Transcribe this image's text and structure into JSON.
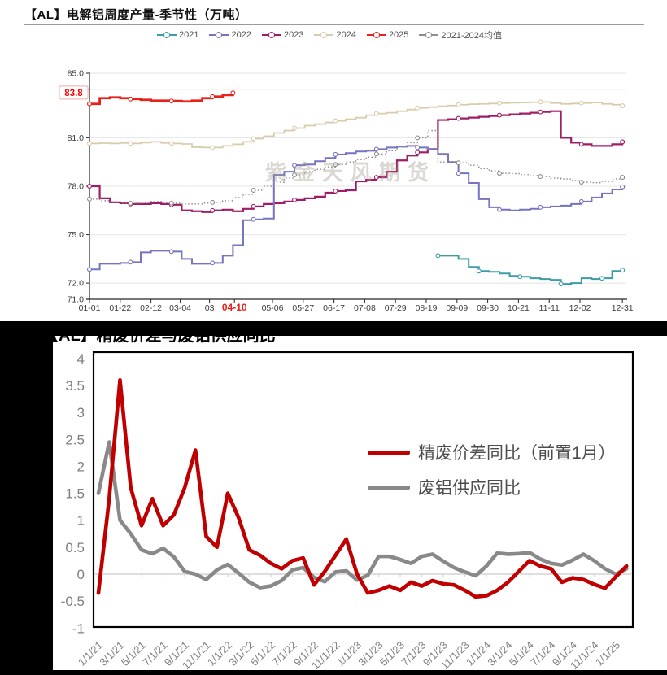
{
  "chart_data": [
    {
      "type": "line",
      "title": "【AL】电解铝周度产量-季节性（万吨）",
      "watermark": "紫金天风期货",
      "ylabel": "万吨",
      "ylim": [
        71,
        85
      ],
      "grid_values": [
        72,
        75,
        78,
        81,
        84,
        85
      ],
      "y_labels": [
        {
          "v": 85,
          "t": "85.0"
        },
        {
          "v": 81,
          "t": "81.0"
        },
        {
          "v": 78,
          "t": "78.0"
        },
        {
          "v": 75,
          "t": "75.0"
        },
        {
          "v": 72,
          "t": "72.0"
        },
        {
          "v": 71,
          "t": "71.0"
        }
      ],
      "highlight": {
        "value": 83.8,
        "label": "83.8",
        "color": "#ff0000"
      },
      "x_ticks": [
        {
          "d": 0,
          "t": "01-01"
        },
        {
          "d": 21,
          "t": "01-22"
        },
        {
          "d": 42,
          "t": "02-12"
        },
        {
          "d": 62,
          "t": "03-04"
        },
        {
          "d": 82,
          "t": "03"
        },
        {
          "d": 99,
          "t": "04-10",
          "red": true
        },
        {
          "d": 125,
          "t": "05-06"
        },
        {
          "d": 146,
          "t": "05-27"
        },
        {
          "d": 167,
          "t": "06-17"
        },
        {
          "d": 188,
          "t": "07-08"
        },
        {
          "d": 209,
          "t": "07-29"
        },
        {
          "d": 230,
          "t": "08-19"
        },
        {
          "d": 251,
          "t": "09-09"
        },
        {
          "d": 272,
          "t": "09-30"
        },
        {
          "d": 293,
          "t": "10-21"
        },
        {
          "d": 314,
          "t": "11-11"
        },
        {
          "d": 335,
          "t": "12-02"
        },
        {
          "d": 364,
          "t": "12-31"
        }
      ],
      "legend_position": "top",
      "grid": true,
      "series": [
        {
          "name": "2021",
          "color": "#3d9da6",
          "width": 2.0,
          "start_week": 34,
          "values": [
            73.7,
            73.7,
            73.5,
            73.0,
            72.75,
            72.7,
            72.6,
            72.45,
            72.4,
            72.3,
            72.25,
            72.2,
            71.95,
            72.0,
            72.3,
            72.25,
            72.3,
            72.75,
            72.8
          ]
        },
        {
          "name": "2022",
          "color": "#7673c0",
          "width": 2.0,
          "start_week": 0,
          "values": [
            72.85,
            73.2,
            73.2,
            73.25,
            73.3,
            73.9,
            74.0,
            74.0,
            73.95,
            73.5,
            73.2,
            73.2,
            73.25,
            73.7,
            74.35,
            75.9,
            75.95,
            76.0,
            78.7,
            78.9,
            79.3,
            79.35,
            79.55,
            79.75,
            79.97,
            80.05,
            80.15,
            80.2,
            80.3,
            80.4,
            80.45,
            80.5,
            80.4,
            80.3,
            80.0,
            79.5,
            78.8,
            78.2,
            77.2,
            76.7,
            76.55,
            76.5,
            76.55,
            76.6,
            76.7,
            76.75,
            76.8,
            76.9,
            77.05,
            77.3,
            77.55,
            77.8,
            77.96
          ]
        },
        {
          "name": "2023",
          "color": "#a01c66",
          "width": 2.2,
          "start_week": 0,
          "values": [
            78.0,
            77.25,
            77.0,
            76.95,
            76.9,
            76.9,
            76.95,
            76.9,
            76.85,
            76.5,
            76.45,
            76.4,
            76.5,
            76.55,
            76.45,
            76.6,
            76.75,
            76.9,
            76.95,
            77.05,
            77.15,
            77.25,
            77.35,
            77.6,
            77.7,
            77.75,
            78.3,
            78.4,
            78.55,
            78.9,
            79.6,
            79.9,
            80.1,
            80.3,
            82.1,
            82.15,
            82.2,
            82.25,
            82.3,
            82.35,
            82.4,
            82.45,
            82.5,
            82.55,
            82.6,
            82.65,
            81.0,
            80.7,
            80.6,
            80.5,
            80.5,
            80.6,
            80.75
          ]
        },
        {
          "name": "2024",
          "color": "#d9cbae",
          "width": 1.8,
          "start_week": 0,
          "values": [
            80.65,
            80.67,
            80.65,
            80.68,
            80.65,
            80.7,
            80.75,
            80.68,
            80.65,
            80.62,
            80.42,
            80.4,
            80.4,
            80.5,
            80.6,
            80.75,
            80.95,
            81.1,
            81.3,
            81.45,
            81.6,
            81.75,
            81.85,
            81.95,
            82.05,
            82.15,
            82.25,
            82.4,
            82.5,
            82.55,
            82.65,
            82.75,
            82.85,
            82.9,
            82.95,
            83.0,
            83.05,
            83.08,
            83.1,
            83.12,
            83.15,
            83.17,
            83.18,
            83.2,
            83.22,
            83.15,
            83.1,
            83.12,
            83.15,
            83.18,
            83.1,
            83.05,
            82.98
          ]
        },
        {
          "name": "2025",
          "color": "#e8221a",
          "width": 2.8,
          "start_week": 0,
          "values": [
            83.1,
            83.45,
            83.5,
            83.45,
            83.4,
            83.35,
            83.3,
            83.3,
            83.28,
            83.25,
            83.3,
            83.45,
            83.55,
            83.65,
            83.78
          ]
        },
        {
          "name": "2021-2024均值",
          "color": "#8c8c8c",
          "width": 1.4,
          "dashed": true,
          "start_week": 0,
          "values": [
            77.2,
            77.1,
            77.0,
            76.95,
            76.95,
            77.0,
            77.05,
            77.0,
            76.95,
            76.9,
            76.9,
            76.95,
            77.0,
            77.1,
            77.3,
            77.5,
            77.75,
            78.0,
            78.25,
            78.5,
            78.7,
            78.9,
            79.05,
            79.2,
            79.35,
            79.5,
            79.65,
            79.8,
            80.0,
            80.2,
            80.45,
            80.7,
            81.0,
            81.45,
            79.5,
            79.5,
            79.45,
            79.3,
            79.1,
            78.95,
            78.8,
            78.78,
            78.72,
            78.65,
            78.6,
            78.5,
            78.45,
            78.35,
            78.25,
            78.22,
            78.3,
            78.45,
            78.55
          ]
        }
      ]
    },
    {
      "type": "line",
      "title": "【AL】精废价差与废铝供应同比",
      "ylim": [
        -1,
        4
      ],
      "y_ticks": [
        {
          "v": 4,
          "t": "4"
        },
        {
          "v": 3.5,
          "t": "3.5"
        },
        {
          "v": 3,
          "t": "3"
        },
        {
          "v": 2.5,
          "t": "2.5"
        },
        {
          "v": 2,
          "t": "2"
        },
        {
          "v": 1.5,
          "t": "1.5"
        },
        {
          "v": 1,
          "t": "1"
        },
        {
          "v": 0.5,
          "t": "0.5"
        },
        {
          "v": 0,
          "t": "0"
        },
        {
          "v": -0.5,
          "t": "-0.5"
        },
        {
          "v": -1,
          "t": "-1"
        }
      ],
      "x_labels": [
        "1/1/21",
        "3/1/21",
        "5/1/21",
        "7/1/21",
        "9/1/21",
        "11/1/21",
        "1/1/22",
        "3/1/22",
        "5/1/22",
        "7/1/22",
        "9/1/22",
        "11/1/22",
        "1/1/23",
        "3/1/23",
        "5/1/23",
        "7/1/23",
        "9/1/23",
        "11/1/23",
        "1/1/24",
        "3/1/24",
        "5/1/24",
        "7/1/24",
        "9/1/24",
        "11/1/24",
        "1/1/25"
      ],
      "months_per_label": 2,
      "legend_position": "inside-right",
      "grid": false,
      "series": [
        {
          "name": "精废价差同比（前置1月）",
          "color": "#c00000",
          "width": 4.6,
          "values": [
            -0.35,
            1.4,
            3.6,
            1.6,
            0.9,
            1.4,
            0.9,
            1.1,
            1.6,
            2.3,
            0.7,
            0.5,
            1.5,
            1.05,
            0.45,
            0.35,
            0.2,
            0.1,
            0.25,
            0.3,
            -0.2,
            0.05,
            0.35,
            0.65,
            0.0,
            -0.35,
            -0.3,
            -0.22,
            -0.3,
            -0.15,
            -0.22,
            -0.12,
            -0.18,
            -0.2,
            -0.3,
            -0.42,
            -0.4,
            -0.3,
            -0.15,
            0.05,
            0.25,
            0.15,
            0.1,
            -0.15,
            -0.07,
            -0.1,
            -0.19,
            -0.26,
            -0.05,
            0.15
          ]
        },
        {
          "name": "废铝供应同比",
          "color": "#898989",
          "width": 4.6,
          "values": [
            1.5,
            2.45,
            1.0,
            0.75,
            0.45,
            0.38,
            0.48,
            0.32,
            0.05,
            0.0,
            -0.1,
            0.08,
            0.18,
            0.02,
            -0.15,
            -0.25,
            -0.22,
            -0.12,
            0.08,
            0.12,
            -0.06,
            -0.14,
            0.04,
            0.06,
            -0.11,
            -0.02,
            0.33,
            0.33,
            0.27,
            0.2,
            0.33,
            0.37,
            0.24,
            0.12,
            0.04,
            -0.03,
            0.15,
            0.39,
            0.37,
            0.38,
            0.4,
            0.28,
            0.2,
            0.17,
            0.26,
            0.37,
            0.25,
            0.1,
            0.0,
            0.1
          ]
        }
      ]
    }
  ]
}
